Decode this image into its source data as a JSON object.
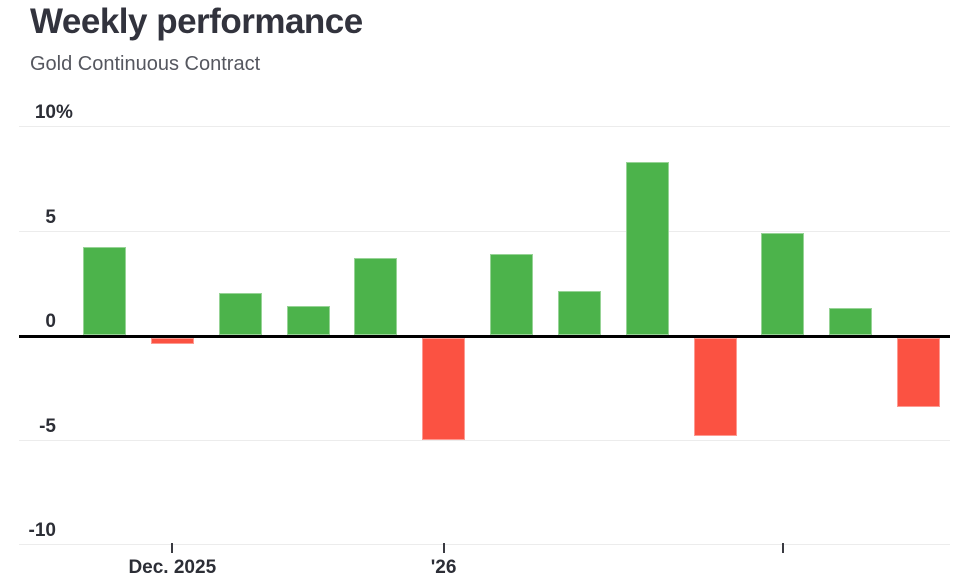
{
  "header": {
    "title": "Weekly performance",
    "subtitle": "Gold Continuous Contract"
  },
  "chart_data": {
    "type": "bar",
    "title": "Weekly performance",
    "subtitle": "Gold Continuous Contract",
    "unit": "%",
    "values": [
      4.2,
      -0.3,
      2.0,
      1.4,
      3.7,
      -4.9,
      3.9,
      2.1,
      8.3,
      -4.7,
      4.9,
      1.3,
      -3.3
    ],
    "ylim": [
      -10,
      10
    ],
    "y_ticks": [
      {
        "value": 10,
        "label": "10",
        "suffix": "%"
      },
      {
        "value": 5,
        "label": "5",
        "suffix": ""
      },
      {
        "value": 0,
        "label": "0",
        "suffix": ""
      },
      {
        "value": -5,
        "label": "-5",
        "suffix": ""
      },
      {
        "value": -10,
        "label": "-10",
        "suffix": ""
      }
    ],
    "x_ticks": [
      {
        "bar_index": 1,
        "label": "Dec. 2025"
      },
      {
        "bar_index": 5,
        "label": "'26"
      },
      {
        "bar_index": 10,
        "label": ""
      }
    ],
    "legend": null,
    "grid": true,
    "colors": {
      "positive": "#4cb34b",
      "negative": "#fb5242",
      "grid": "#ececec",
      "zero_line": "#000000",
      "tick_mark": "#3a3b42",
      "tick_text": "#2c2e36",
      "title_text": "#32333d",
      "subtitle_text": "#55575f"
    }
  }
}
